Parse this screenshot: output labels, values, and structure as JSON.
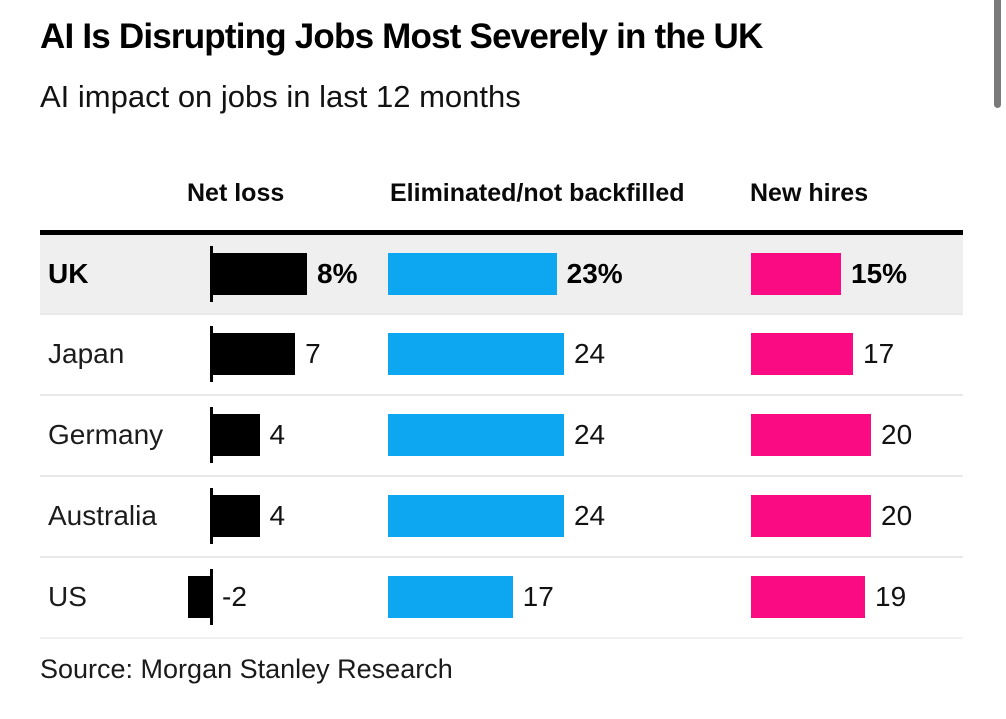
{
  "colors": {
    "net_loss_bar": "#000000",
    "eliminated_bar": "#0DA6F1",
    "new_hires_bar": "#FA0B84",
    "highlight_row_bg": "#EFEFEF",
    "row_divider": "#E9E9E9",
    "header_rule": "#000000",
    "scrollbar_thumb": "#7A7A7A"
  },
  "chart_data": {
    "type": "bar",
    "orientation": "horizontal",
    "title": "AI Is Disrupting Jobs Most Severely in the UK",
    "subtitle": "AI impact on jobs in last 12 months",
    "source": "Source: Morgan Stanley Research",
    "unit": "percent",
    "categories": [
      "UK",
      "Japan",
      "Germany",
      "Australia",
      "US"
    ],
    "highlighted_category": "UK",
    "series": [
      {
        "name": "Net loss",
        "color": "#000000",
        "values": [
          8,
          7,
          4,
          4,
          -2
        ],
        "value_labels": [
          "8%",
          "7",
          "4",
          "4",
          "-2"
        ],
        "has_zero_axis_tick": true
      },
      {
        "name": "Eliminated/not backfilled",
        "color": "#0DA6F1",
        "values": [
          23,
          24,
          24,
          24,
          17
        ],
        "value_labels": [
          "23%",
          "24",
          "24",
          "24",
          "17"
        ],
        "has_zero_axis_tick": false
      },
      {
        "name": "New hires",
        "color": "#FA0B84",
        "values": [
          15,
          17,
          20,
          20,
          19
        ],
        "value_labels": [
          "15%",
          "17",
          "20",
          "20",
          "19"
        ],
        "has_zero_axis_tick": false
      }
    ],
    "layout_note": "each column scaled independently to its own max value",
    "legend": "none",
    "grid": "off"
  }
}
